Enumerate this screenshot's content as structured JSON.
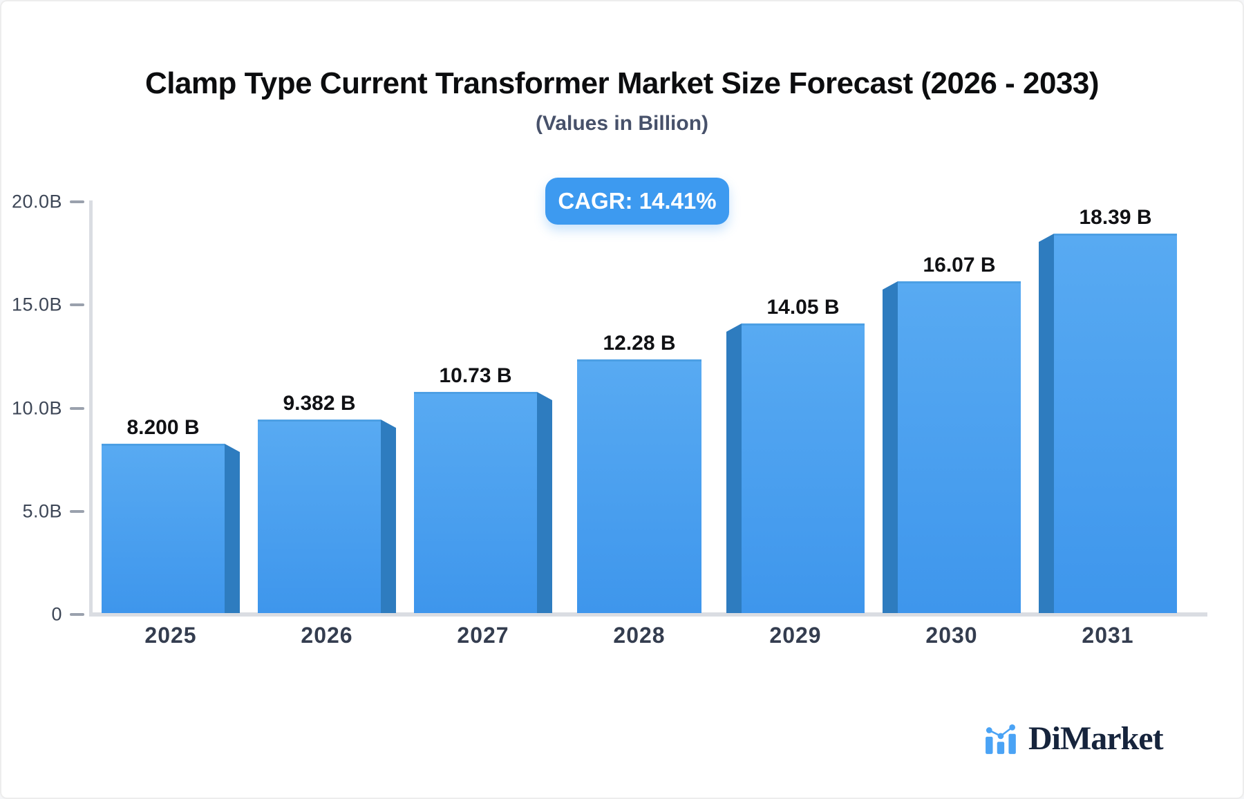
{
  "header": {
    "title": "Clamp Type Current Transformer Market Size Forecast (2026 - 2033)",
    "subtitle": "(Values in Billion)",
    "badge_label": "CAGR: 14.41%"
  },
  "chart_data": {
    "type": "bar",
    "title": "Clamp Type Current Transformer Market Size Forecast (2026 - 2033)",
    "subtitle": "(Values in Billion)",
    "cagr": "14.41%",
    "categories": [
      "2025",
      "2026",
      "2027",
      "2028",
      "2029",
      "2030",
      "2031"
    ],
    "values": [
      8.2,
      9.382,
      10.73,
      12.28,
      14.05,
      16.07,
      18.39
    ],
    "value_labels": [
      "8.200 B",
      "9.382 B",
      "10.73 B",
      "12.28 B",
      "14.05 B",
      "16.07 B",
      "18.39 B"
    ],
    "xlabel": "",
    "ylabel": "",
    "ylim": [
      0,
      20
    ],
    "yticks": [
      {
        "label": "20.0B",
        "value": 20
      },
      {
        "label": "15.0B",
        "value": 15
      },
      {
        "label": "10.0B",
        "value": 10
      },
      {
        "label": "5.0B",
        "value": 5
      },
      {
        "label": "0",
        "value": 0
      }
    ],
    "grid": false,
    "legend": false,
    "colors": {
      "bar_face_top": "#58aaf2",
      "bar_face_bottom": "#3e96ec",
      "bar_side": "#2e7cbf",
      "axis_line": "#dadde2",
      "tick_dash": "#9aa1ad",
      "badge_bg": "#3d9af0",
      "badge_text": "#ffffff"
    }
  },
  "footer": {
    "logo_text": "DiMarket"
  }
}
